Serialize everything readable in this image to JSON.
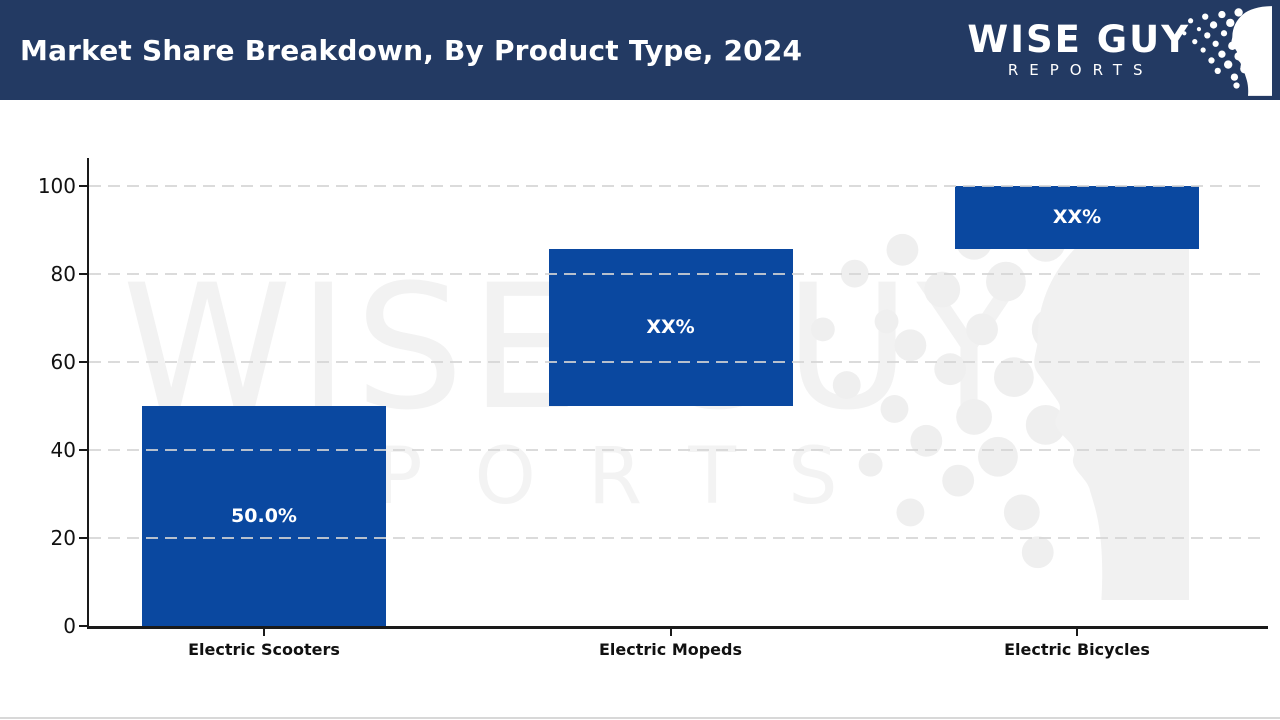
{
  "header": {
    "title": "Market Share Breakdown, By Product Type, 2024",
    "logo": {
      "line1": "WISE GUY",
      "line2": "REPORTS"
    }
  },
  "watermark": {
    "line1": "WISE GUY",
    "line2": "REPORTS"
  },
  "colors": {
    "header_bg": "#233a63",
    "bar_fill": "#0a48a0",
    "grid": "#d5d5d5",
    "axis": "#1a1a1a",
    "bar_label_text": "#ffffff",
    "watermark_text": "#f2f2f2"
  },
  "chart_data": {
    "type": "bar",
    "subtype": "waterfall-stacked",
    "title": "Market Share Breakdown, By Product Type, 2024",
    "xlabel": "",
    "ylabel": "",
    "categories": [
      "Electric Scooters",
      "Electric Mopeds",
      "Electric Bicycles"
    ],
    "segments": [
      {
        "category": "Electric Scooters",
        "start": 0,
        "end": 50,
        "label": "50.0%"
      },
      {
        "category": "Electric Mopeds",
        "start": 50,
        "end": 85.7,
        "label": "XX%"
      },
      {
        "category": "Electric Bicycles",
        "start": 85.7,
        "end": 100,
        "label": "XX%"
      }
    ],
    "yticks": [
      0,
      20,
      40,
      60,
      80,
      100
    ],
    "ylim": [
      0,
      106
    ],
    "grid": "dashed horizontal",
    "legend": "none"
  }
}
